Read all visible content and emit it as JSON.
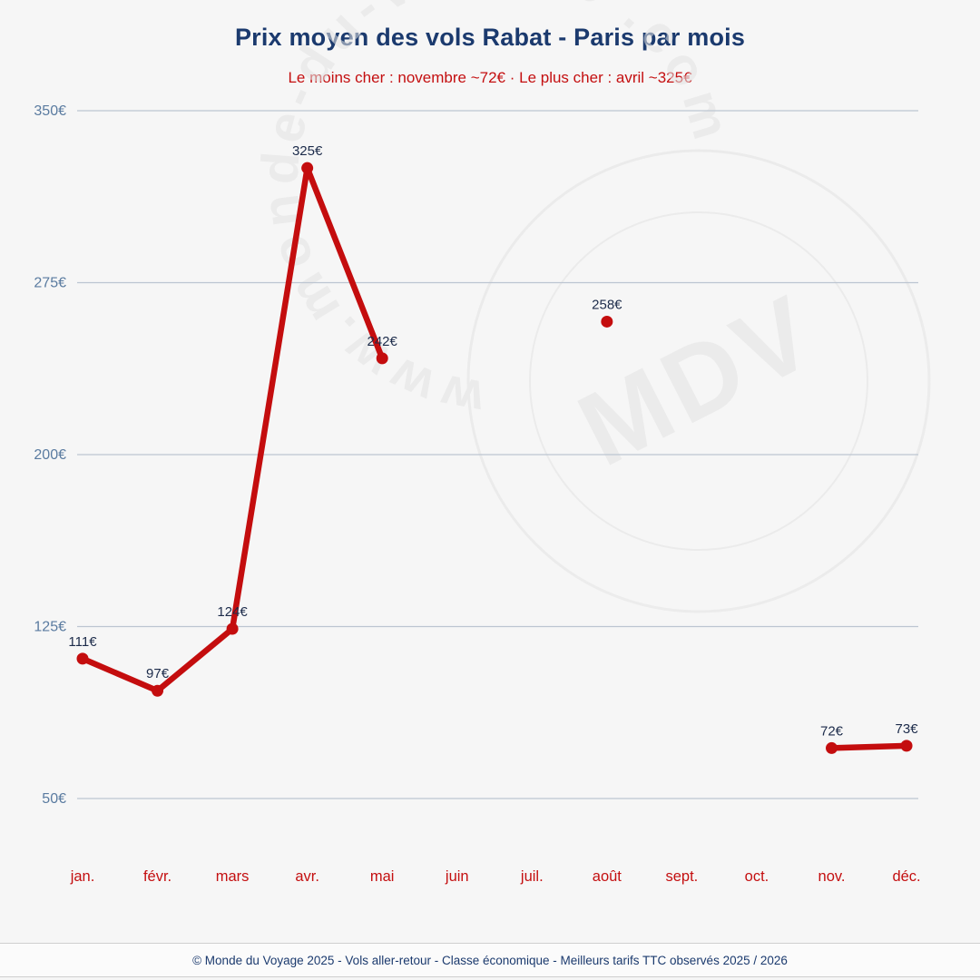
{
  "chart_data": {
    "type": "line",
    "title": "Prix moyen des vols Rabat - Paris par mois",
    "subtitle": "Le moins cher : novembre ~72€ · Le plus cher : avril ~325€",
    "categories": [
      "jan.",
      "févr.",
      "mars",
      "avr.",
      "mai",
      "juin",
      "juil.",
      "août",
      "sept.",
      "oct.",
      "nov.",
      "déc."
    ],
    "values": [
      111,
      97,
      124,
      325,
      242,
      null,
      null,
      258,
      null,
      null,
      72,
      73
    ],
    "point_labels": [
      "111€",
      "97€",
      "124€",
      "325€",
      "242€",
      null,
      null,
      "258€",
      null,
      null,
      "72€",
      "73€"
    ],
    "unit": "€",
    "xlabel": "",
    "ylabel": "",
    "ylim": [
      50,
      350
    ],
    "yticks": [
      350,
      275,
      200,
      125,
      50
    ],
    "ytick_labels": [
      "350€",
      "275€",
      "200€",
      "125€",
      "50€"
    ],
    "grid": true,
    "legend": "none",
    "line_color": "#c40d0e",
    "point_color": "#c40d0e",
    "note": "isolated point in août; line breaks for juin, juil., sept., oct."
  },
  "watermark": {
    "ring_text": "www.monde-du-voyage .com",
    "center_text": "MDV"
  },
  "footer": {
    "text": "© Monde du Voyage 2025 - Vols aller-retour - Classe économique - Meilleurs tarifs TTC observés 2025 / 2026"
  },
  "colors": {
    "background": "#f6f6f6",
    "title": "#1b3a6e",
    "subtitle": "#c40f10",
    "grid": "#bcc5d1",
    "axis_label": "#5a7ba0",
    "month_label": "#c40f10",
    "value_label": "#1c2b4a",
    "watermark": "#e3e3e3",
    "footer_text": "#1b3a6e"
  }
}
